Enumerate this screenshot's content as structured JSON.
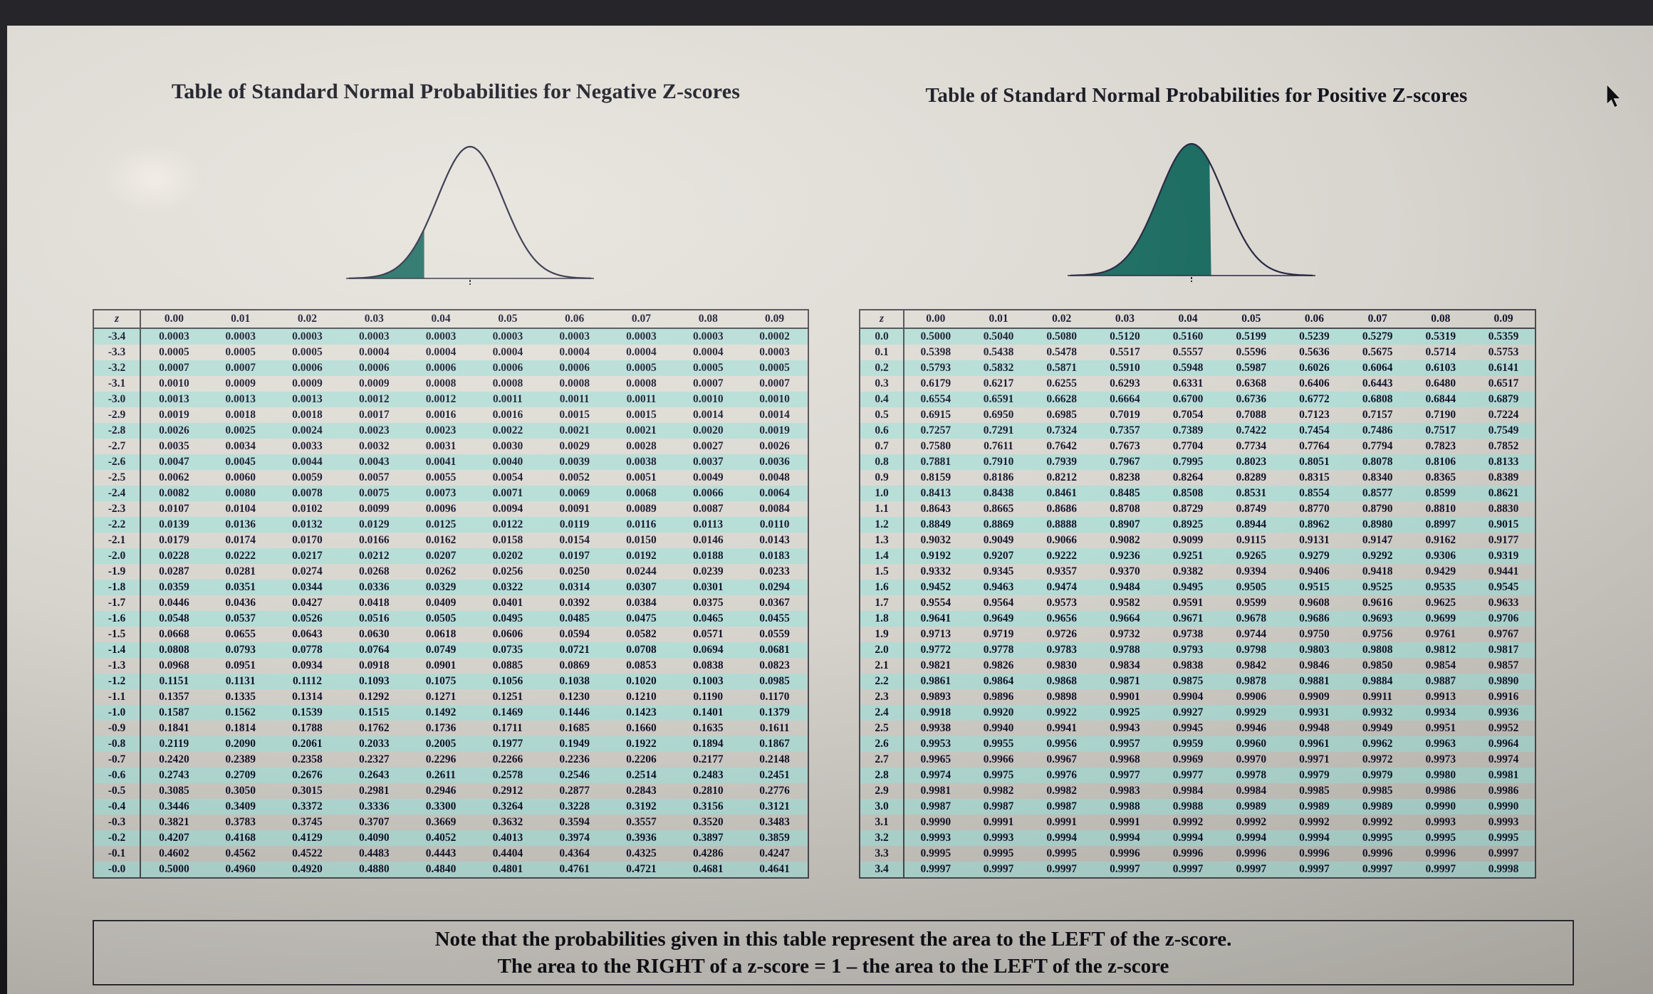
{
  "colors": {
    "stripe": "#b4ddd6",
    "curve_fill": "#17695f",
    "curve_stroke": "#23233c",
    "table_border": "#4a4a50"
  },
  "note": {
    "line1": "Note that the probabilities given in this table represent the area to the  LEFT of the z-score.",
    "line2": "The area to the RIGHT of a z-score = 1 – the area to the LEFT of the z-score"
  },
  "negative_table": {
    "title": "Table of Standard Normal Probabilities for Negative Z-scores",
    "columns": [
      "z",
      "0.00",
      "0.01",
      "0.02",
      "0.03",
      "0.04",
      "0.05",
      "0.06",
      "0.07",
      "0.08",
      "0.09"
    ],
    "rows": [
      [
        "-3.4",
        "0.0003",
        "0.0003",
        "0.0003",
        "0.0003",
        "0.0003",
        "0.0003",
        "0.0003",
        "0.0003",
        "0.0003",
        "0.0002"
      ],
      [
        "-3.3",
        "0.0005",
        "0.0005",
        "0.0005",
        "0.0004",
        "0.0004",
        "0.0004",
        "0.0004",
        "0.0004",
        "0.0004",
        "0.0003"
      ],
      [
        "-3.2",
        "0.0007",
        "0.0007",
        "0.0006",
        "0.0006",
        "0.0006",
        "0.0006",
        "0.0006",
        "0.0005",
        "0.0005",
        "0.0005"
      ],
      [
        "-3.1",
        "0.0010",
        "0.0009",
        "0.0009",
        "0.0009",
        "0.0008",
        "0.0008",
        "0.0008",
        "0.0008",
        "0.0007",
        "0.0007"
      ],
      [
        "-3.0",
        "0.0013",
        "0.0013",
        "0.0013",
        "0.0012",
        "0.0012",
        "0.0011",
        "0.0011",
        "0.0011",
        "0.0010",
        "0.0010"
      ],
      [
        "-2.9",
        "0.0019",
        "0.0018",
        "0.0018",
        "0.0017",
        "0.0016",
        "0.0016",
        "0.0015",
        "0.0015",
        "0.0014",
        "0.0014"
      ],
      [
        "-2.8",
        "0.0026",
        "0.0025",
        "0.0024",
        "0.0023",
        "0.0023",
        "0.0022",
        "0.0021",
        "0.0021",
        "0.0020",
        "0.0019"
      ],
      [
        "-2.7",
        "0.0035",
        "0.0034",
        "0.0033",
        "0.0032",
        "0.0031",
        "0.0030",
        "0.0029",
        "0.0028",
        "0.0027",
        "0.0026"
      ],
      [
        "-2.6",
        "0.0047",
        "0.0045",
        "0.0044",
        "0.0043",
        "0.0041",
        "0.0040",
        "0.0039",
        "0.0038",
        "0.0037",
        "0.0036"
      ],
      [
        "-2.5",
        "0.0062",
        "0.0060",
        "0.0059",
        "0.0057",
        "0.0055",
        "0.0054",
        "0.0052",
        "0.0051",
        "0.0049",
        "0.0048"
      ],
      [
        "-2.4",
        "0.0082",
        "0.0080",
        "0.0078",
        "0.0075",
        "0.0073",
        "0.0071",
        "0.0069",
        "0.0068",
        "0.0066",
        "0.0064"
      ],
      [
        "-2.3",
        "0.0107",
        "0.0104",
        "0.0102",
        "0.0099",
        "0.0096",
        "0.0094",
        "0.0091",
        "0.0089",
        "0.0087",
        "0.0084"
      ],
      [
        "-2.2",
        "0.0139",
        "0.0136",
        "0.0132",
        "0.0129",
        "0.0125",
        "0.0122",
        "0.0119",
        "0.0116",
        "0.0113",
        "0.0110"
      ],
      [
        "-2.1",
        "0.0179",
        "0.0174",
        "0.0170",
        "0.0166",
        "0.0162",
        "0.0158",
        "0.0154",
        "0.0150",
        "0.0146",
        "0.0143"
      ],
      [
        "-2.0",
        "0.0228",
        "0.0222",
        "0.0217",
        "0.0212",
        "0.0207",
        "0.0202",
        "0.0197",
        "0.0192",
        "0.0188",
        "0.0183"
      ],
      [
        "-1.9",
        "0.0287",
        "0.0281",
        "0.0274",
        "0.0268",
        "0.0262",
        "0.0256",
        "0.0250",
        "0.0244",
        "0.0239",
        "0.0233"
      ],
      [
        "-1.8",
        "0.0359",
        "0.0351",
        "0.0344",
        "0.0336",
        "0.0329",
        "0.0322",
        "0.0314",
        "0.0307",
        "0.0301",
        "0.0294"
      ],
      [
        "-1.7",
        "0.0446",
        "0.0436",
        "0.0427",
        "0.0418",
        "0.0409",
        "0.0401",
        "0.0392",
        "0.0384",
        "0.0375",
        "0.0367"
      ],
      [
        "-1.6",
        "0.0548",
        "0.0537",
        "0.0526",
        "0.0516",
        "0.0505",
        "0.0495",
        "0.0485",
        "0.0475",
        "0.0465",
        "0.0455"
      ],
      [
        "-1.5",
        "0.0668",
        "0.0655",
        "0.0643",
        "0.0630",
        "0.0618",
        "0.0606",
        "0.0594",
        "0.0582",
        "0.0571",
        "0.0559"
      ],
      [
        "-1.4",
        "0.0808",
        "0.0793",
        "0.0778",
        "0.0764",
        "0.0749",
        "0.0735",
        "0.0721",
        "0.0708",
        "0.0694",
        "0.0681"
      ],
      [
        "-1.3",
        "0.0968",
        "0.0951",
        "0.0934",
        "0.0918",
        "0.0901",
        "0.0885",
        "0.0869",
        "0.0853",
        "0.0838",
        "0.0823"
      ],
      [
        "-1.2",
        "0.1151",
        "0.1131",
        "0.1112",
        "0.1093",
        "0.1075",
        "0.1056",
        "0.1038",
        "0.1020",
        "0.1003",
        "0.0985"
      ],
      [
        "-1.1",
        "0.1357",
        "0.1335",
        "0.1314",
        "0.1292",
        "0.1271",
        "0.1251",
        "0.1230",
        "0.1210",
        "0.1190",
        "0.1170"
      ],
      [
        "-1.0",
        "0.1587",
        "0.1562",
        "0.1539",
        "0.1515",
        "0.1492",
        "0.1469",
        "0.1446",
        "0.1423",
        "0.1401",
        "0.1379"
      ],
      [
        "-0.9",
        "0.1841",
        "0.1814",
        "0.1788",
        "0.1762",
        "0.1736",
        "0.1711",
        "0.1685",
        "0.1660",
        "0.1635",
        "0.1611"
      ],
      [
        "-0.8",
        "0.2119",
        "0.2090",
        "0.2061",
        "0.2033",
        "0.2005",
        "0.1977",
        "0.1949",
        "0.1922",
        "0.1894",
        "0.1867"
      ],
      [
        "-0.7",
        "0.2420",
        "0.2389",
        "0.2358",
        "0.2327",
        "0.2296",
        "0.2266",
        "0.2236",
        "0.2206",
        "0.2177",
        "0.2148"
      ],
      [
        "-0.6",
        "0.2743",
        "0.2709",
        "0.2676",
        "0.2643",
        "0.2611",
        "0.2578",
        "0.2546",
        "0.2514",
        "0.2483",
        "0.2451"
      ],
      [
        "-0.5",
        "0.3085",
        "0.3050",
        "0.3015",
        "0.2981",
        "0.2946",
        "0.2912",
        "0.2877",
        "0.2843",
        "0.2810",
        "0.2776"
      ],
      [
        "-0.4",
        "0.3446",
        "0.3409",
        "0.3372",
        "0.3336",
        "0.3300",
        "0.3264",
        "0.3228",
        "0.3192",
        "0.3156",
        "0.3121"
      ],
      [
        "-0.3",
        "0.3821",
        "0.3783",
        "0.3745",
        "0.3707",
        "0.3669",
        "0.3632",
        "0.3594",
        "0.3557",
        "0.3520",
        "0.3483"
      ],
      [
        "-0.2",
        "0.4207",
        "0.4168",
        "0.4129",
        "0.4090",
        "0.4052",
        "0.4013",
        "0.3974",
        "0.3936",
        "0.3897",
        "0.3859"
      ],
      [
        "-0.1",
        "0.4602",
        "0.4562",
        "0.4522",
        "0.4483",
        "0.4443",
        "0.4404",
        "0.4364",
        "0.4325",
        "0.4286",
        "0.4247"
      ],
      [
        "-0.0",
        "0.5000",
        "0.4960",
        "0.4920",
        "0.4880",
        "0.4840",
        "0.4801",
        "0.4761",
        "0.4721",
        "0.4681",
        "0.4641"
      ]
    ]
  },
  "positive_table": {
    "title": "Table of Standard Normal Probabilities for Positive Z-scores",
    "columns": [
      "z",
      "0.00",
      "0.01",
      "0.02",
      "0.03",
      "0.04",
      "0.05",
      "0.06",
      "0.07",
      "0.08",
      "0.09"
    ],
    "rows": [
      [
        "0.0",
        "0.5000",
        "0.5040",
        "0.5080",
        "0.5120",
        "0.5160",
        "0.5199",
        "0.5239",
        "0.5279",
        "0.5319",
        "0.5359"
      ],
      [
        "0.1",
        "0.5398",
        "0.5438",
        "0.5478",
        "0.5517",
        "0.5557",
        "0.5596",
        "0.5636",
        "0.5675",
        "0.5714",
        "0.5753"
      ],
      [
        "0.2",
        "0.5793",
        "0.5832",
        "0.5871",
        "0.5910",
        "0.5948",
        "0.5987",
        "0.6026",
        "0.6064",
        "0.6103",
        "0.6141"
      ],
      [
        "0.3",
        "0.6179",
        "0.6217",
        "0.6255",
        "0.6293",
        "0.6331",
        "0.6368",
        "0.6406",
        "0.6443",
        "0.6480",
        "0.6517"
      ],
      [
        "0.4",
        "0.6554",
        "0.6591",
        "0.6628",
        "0.6664",
        "0.6700",
        "0.6736",
        "0.6772",
        "0.6808",
        "0.6844",
        "0.6879"
      ],
      [
        "0.5",
        "0.6915",
        "0.6950",
        "0.6985",
        "0.7019",
        "0.7054",
        "0.7088",
        "0.7123",
        "0.7157",
        "0.7190",
        "0.7224"
      ],
      [
        "0.6",
        "0.7257",
        "0.7291",
        "0.7324",
        "0.7357",
        "0.7389",
        "0.7422",
        "0.7454",
        "0.7486",
        "0.7517",
        "0.7549"
      ],
      [
        "0.7",
        "0.7580",
        "0.7611",
        "0.7642",
        "0.7673",
        "0.7704",
        "0.7734",
        "0.7764",
        "0.7794",
        "0.7823",
        "0.7852"
      ],
      [
        "0.8",
        "0.7881",
        "0.7910",
        "0.7939",
        "0.7967",
        "0.7995",
        "0.8023",
        "0.8051",
        "0.8078",
        "0.8106",
        "0.8133"
      ],
      [
        "0.9",
        "0.8159",
        "0.8186",
        "0.8212",
        "0.8238",
        "0.8264",
        "0.8289",
        "0.8315",
        "0.8340",
        "0.8365",
        "0.8389"
      ],
      [
        "1.0",
        "0.8413",
        "0.8438",
        "0.8461",
        "0.8485",
        "0.8508",
        "0.8531",
        "0.8554",
        "0.8577",
        "0.8599",
        "0.8621"
      ],
      [
        "1.1",
        "0.8643",
        "0.8665",
        "0.8686",
        "0.8708",
        "0.8729",
        "0.8749",
        "0.8770",
        "0.8790",
        "0.8810",
        "0.8830"
      ],
      [
        "1.2",
        "0.8849",
        "0.8869",
        "0.8888",
        "0.8907",
        "0.8925",
        "0.8944",
        "0.8962",
        "0.8980",
        "0.8997",
        "0.9015"
      ],
      [
        "1.3",
        "0.9032",
        "0.9049",
        "0.9066",
        "0.9082",
        "0.9099",
        "0.9115",
        "0.9131",
        "0.9147",
        "0.9162",
        "0.9177"
      ],
      [
        "1.4",
        "0.9192",
        "0.9207",
        "0.9222",
        "0.9236",
        "0.9251",
        "0.9265",
        "0.9279",
        "0.9292",
        "0.9306",
        "0.9319"
      ],
      [
        "1.5",
        "0.9332",
        "0.9345",
        "0.9357",
        "0.9370",
        "0.9382",
        "0.9394",
        "0.9406",
        "0.9418",
        "0.9429",
        "0.9441"
      ],
      [
        "1.6",
        "0.9452",
        "0.9463",
        "0.9474",
        "0.9484",
        "0.9495",
        "0.9505",
        "0.9515",
        "0.9525",
        "0.9535",
        "0.9545"
      ],
      [
        "1.7",
        "0.9554",
        "0.9564",
        "0.9573",
        "0.9582",
        "0.9591",
        "0.9599",
        "0.9608",
        "0.9616",
        "0.9625",
        "0.9633"
      ],
      [
        "1.8",
        "0.9641",
        "0.9649",
        "0.9656",
        "0.9664",
        "0.9671",
        "0.9678",
        "0.9686",
        "0.9693",
        "0.9699",
        "0.9706"
      ],
      [
        "1.9",
        "0.9713",
        "0.9719",
        "0.9726",
        "0.9732",
        "0.9738",
        "0.9744",
        "0.9750",
        "0.9756",
        "0.9761",
        "0.9767"
      ],
      [
        "2.0",
        "0.9772",
        "0.9778",
        "0.9783",
        "0.9788",
        "0.9793",
        "0.9798",
        "0.9803",
        "0.9808",
        "0.9812",
        "0.9817"
      ],
      [
        "2.1",
        "0.9821",
        "0.9826",
        "0.9830",
        "0.9834",
        "0.9838",
        "0.9842",
        "0.9846",
        "0.9850",
        "0.9854",
        "0.9857"
      ],
      [
        "2.2",
        "0.9861",
        "0.9864",
        "0.9868",
        "0.9871",
        "0.9875",
        "0.9878",
        "0.9881",
        "0.9884",
        "0.9887",
        "0.9890"
      ],
      [
        "2.3",
        "0.9893",
        "0.9896",
        "0.9898",
        "0.9901",
        "0.9904",
        "0.9906",
        "0.9909",
        "0.9911",
        "0.9913",
        "0.9916"
      ],
      [
        "2.4",
        "0.9918",
        "0.9920",
        "0.9922",
        "0.9925",
        "0.9927",
        "0.9929",
        "0.9931",
        "0.9932",
        "0.9934",
        "0.9936"
      ],
      [
        "2.5",
        "0.9938",
        "0.9940",
        "0.9941",
        "0.9943",
        "0.9945",
        "0.9946",
        "0.9948",
        "0.9949",
        "0.9951",
        "0.9952"
      ],
      [
        "2.6",
        "0.9953",
        "0.9955",
        "0.9956",
        "0.9957",
        "0.9959",
        "0.9960",
        "0.9961",
        "0.9962",
        "0.9963",
        "0.9964"
      ],
      [
        "2.7",
        "0.9965",
        "0.9966",
        "0.9967",
        "0.9968",
        "0.9969",
        "0.9970",
        "0.9971",
        "0.9972",
        "0.9973",
        "0.9974"
      ],
      [
        "2.8",
        "0.9974",
        "0.9975",
        "0.9976",
        "0.9977",
        "0.9977",
        "0.9978",
        "0.9979",
        "0.9979",
        "0.9980",
        "0.9981"
      ],
      [
        "2.9",
        "0.9981",
        "0.9982",
        "0.9982",
        "0.9983",
        "0.9984",
        "0.9984",
        "0.9985",
        "0.9985",
        "0.9986",
        "0.9986"
      ],
      [
        "3.0",
        "0.9987",
        "0.9987",
        "0.9987",
        "0.9988",
        "0.9988",
        "0.9989",
        "0.9989",
        "0.9989",
        "0.9990",
        "0.9990"
      ],
      [
        "3.1",
        "0.9990",
        "0.9991",
        "0.9991",
        "0.9991",
        "0.9992",
        "0.9992",
        "0.9992",
        "0.9992",
        "0.9993",
        "0.9993"
      ],
      [
        "3.2",
        "0.9993",
        "0.9993",
        "0.9994",
        "0.9994",
        "0.9994",
        "0.9994",
        "0.9994",
        "0.9995",
        "0.9995",
        "0.9995"
      ],
      [
        "3.3",
        "0.9995",
        "0.9995",
        "0.9995",
        "0.9996",
        "0.9996",
        "0.9996",
        "0.9996",
        "0.9996",
        "0.9996",
        "0.9997"
      ],
      [
        "3.4",
        "0.9997",
        "0.9997",
        "0.9997",
        "0.9997",
        "0.9997",
        "0.9997",
        "0.9997",
        "0.9997",
        "0.9997",
        "0.9998"
      ]
    ]
  }
}
